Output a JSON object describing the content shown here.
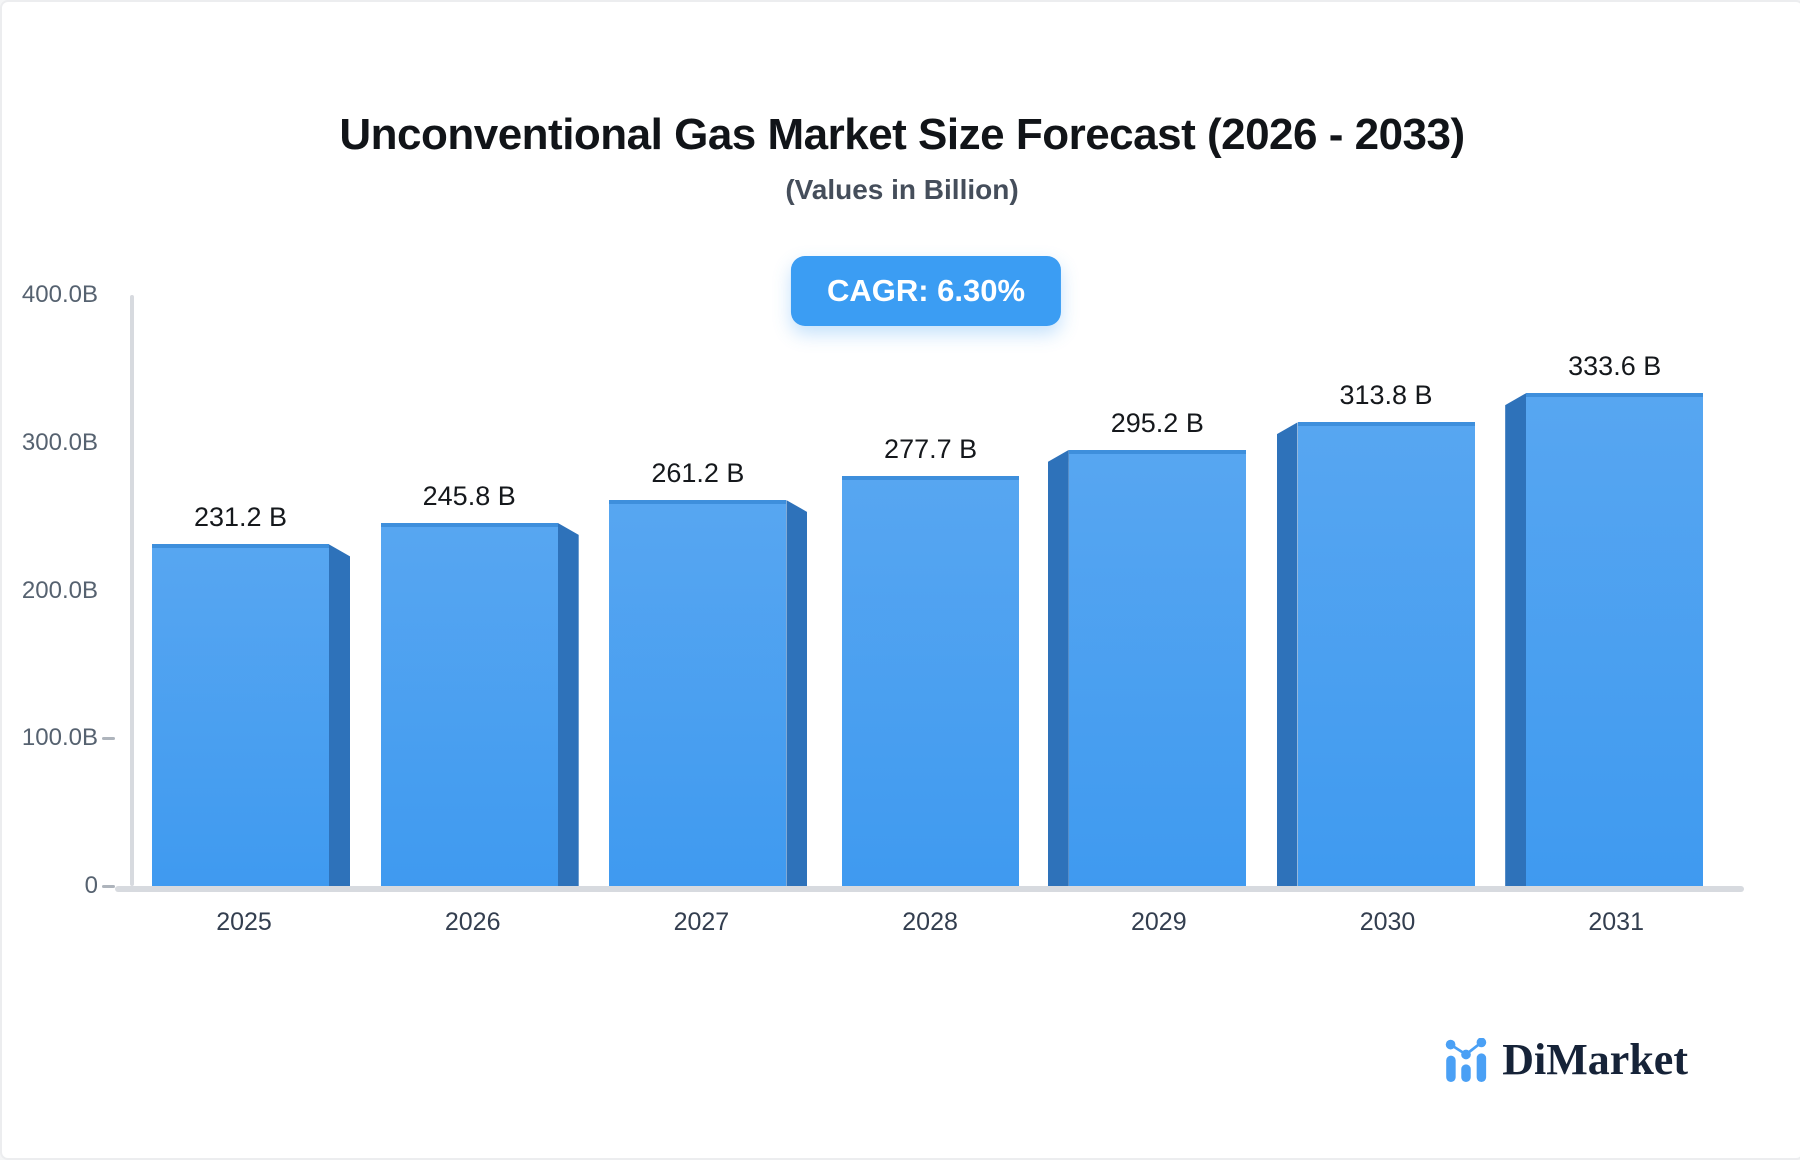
{
  "title": "Unconventional Gas Market Size Forecast (2026 - 2033)",
  "subtitle": "(Values in Billion)",
  "cagr_badge": "CAGR: 6.30%",
  "brand": {
    "name": "DiMarket",
    "icon": "mini-bar-chart-logo"
  },
  "colors": {
    "title": "#111418",
    "subtitle": "#454E5B",
    "badge_bg": "#3B9DF3",
    "badge_text": "#FFFFFF",
    "bar_face_top": "#57A6F1",
    "bar_face_bottom": "#3F9AF0",
    "bar_top_edge": "#3E8FDC",
    "bar_side": "#2E72BA",
    "axis_line": "#D7DADF",
    "y_label": "#566270",
    "x_label": "#333E4F",
    "value_label": "#15181C",
    "brand_blue": "#4AA0F5",
    "brand_navy": "#162338"
  },
  "chart_data": {
    "type": "bar",
    "bar_style": "3d-perspective",
    "title": "Unconventional Gas Market Size Forecast (2026 - 2033)",
    "subtitle": "(Values in Billion)",
    "cagr_percent": "6.30%",
    "categories": [
      "2025",
      "2026",
      "2027",
      "2028",
      "2029",
      "2030",
      "2031"
    ],
    "values": [
      231.2,
      245.8,
      261.2,
      277.7,
      295.2,
      313.8,
      333.6
    ],
    "value_labels": [
      "231.2 B",
      "245.8 B",
      "261.2 B",
      "277.7 B",
      "295.2 B",
      "313.8 B",
      "333.6 B"
    ],
    "unit": "Billion",
    "ylim": [
      0,
      400
    ],
    "y_axis_ticks": [
      {
        "label": "400.0B",
        "value": 400
      },
      {
        "label": "300.0B",
        "value": 300
      },
      {
        "label": "200.0B",
        "value": 200
      },
      {
        "label": "100.0B",
        "value": 100
      },
      {
        "label": "0",
        "value": 0
      }
    ],
    "grid": false,
    "legend": false
  }
}
